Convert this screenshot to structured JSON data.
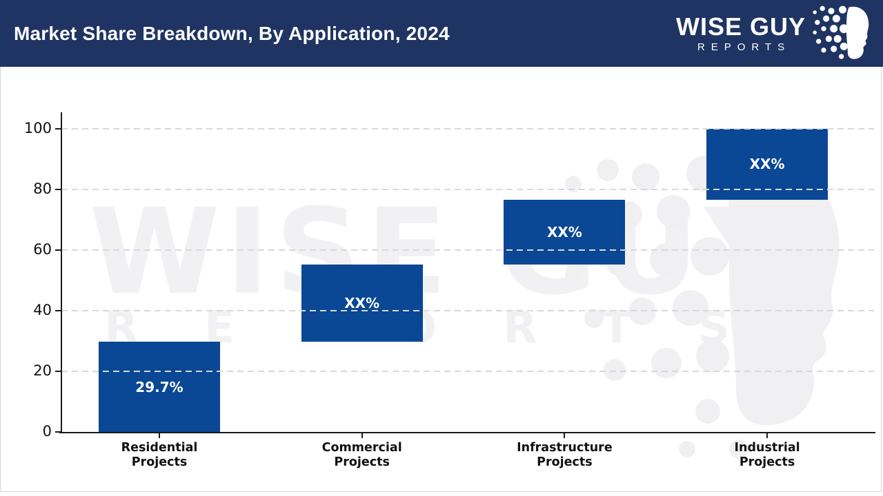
{
  "header": {
    "title": "Market Share Breakdown, By Application, 2024",
    "logo": {
      "line1": "WISE GUY",
      "line2": "REPORTS"
    }
  },
  "watermark": {
    "line1": "WISE GUY",
    "line2": "REPORTS"
  },
  "chart_data": {
    "type": "bar",
    "subtype": "waterfall-stacked-percentage",
    "title": "Market Share Breakdown, By Application, 2024",
    "xlabel": "",
    "ylabel": "",
    "ylim": [
      0,
      100
    ],
    "yticks": [
      0,
      20,
      40,
      60,
      80,
      100
    ],
    "grid": "dashed-horizontal",
    "legend": "none",
    "bar_color": "#0a4795",
    "value_label_color": "#ffffff",
    "bars": [
      {
        "category": "Residential Projects",
        "lines": [
          "Residential",
          "Projects"
        ],
        "label": "29.7%",
        "start": 0,
        "end": 29.7
      },
      {
        "category": "Commercial Projects",
        "lines": [
          "Commercial",
          "Projects"
        ],
        "label": "XX%",
        "start": 29.7,
        "end": 55.2
      },
      {
        "category": "Infrastructure Projects",
        "lines": [
          "Infrastructure",
          "Projects"
        ],
        "label": "XX%",
        "start": 55.2,
        "end": 76.6
      },
      {
        "category": "Industrial Projects",
        "lines": [
          "Industrial",
          "Projects"
        ],
        "label": "XX%",
        "start": 76.6,
        "end": 100
      }
    ]
  },
  "colors": {
    "header_bg": "#1f3462",
    "bar": "#0a4795",
    "axis": "#1a1a1a",
    "grid": "#d9d9d9",
    "card_border": "#d6d6d6"
  }
}
